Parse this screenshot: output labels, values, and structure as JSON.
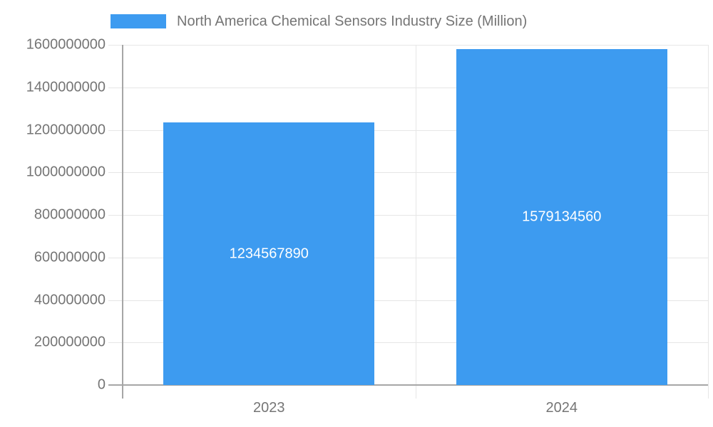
{
  "chart_data": {
    "type": "bar",
    "title": "North America Chemical Sensors Industry Size (Million)",
    "categories": [
      "2023",
      "2024"
    ],
    "series": [
      {
        "name": "North America Chemical Sensors Industry Size (Million)",
        "values": [
          1234567890,
          1579134560
        ]
      }
    ],
    "value_labels": [
      "1234567890",
      "1579134560"
    ],
    "xlabel": "",
    "ylabel": "",
    "ylim": [
      0,
      1600000000
    ],
    "ytick_step": 200000000,
    "ytick_labels": [
      "0",
      "200000000",
      "400000000",
      "600000000",
      "800000000",
      "1000000000",
      "1200000000",
      "1400000000",
      "1600000000"
    ],
    "grid": true,
    "legend_position": "top",
    "value_label_position": "inside-center",
    "colors": {
      "bar": "#3D9BF0",
      "gridline": "#e6e6e6",
      "axis": "#a6a6a6",
      "text": "#757575",
      "value_label_text": "#ffffff"
    }
  }
}
